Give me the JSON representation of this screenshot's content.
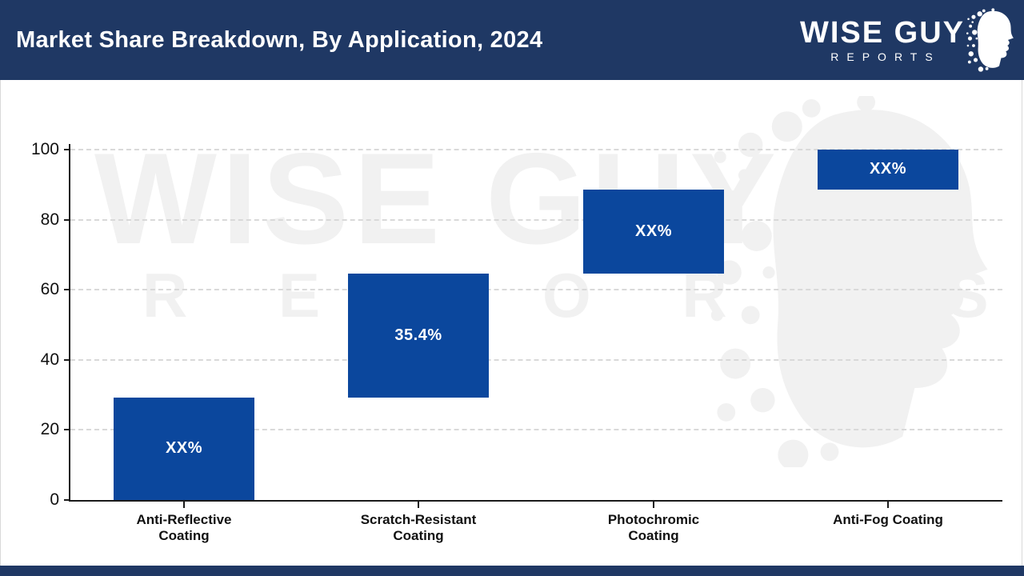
{
  "header": {
    "title": "Market Share Breakdown, By Application, 2024"
  },
  "logo": {
    "line1": "WISE GUY",
    "line2": "REPORTS"
  },
  "watermark": {
    "line1": "WISE GUY",
    "line2": "R E P O R T S"
  },
  "chart_data": {
    "type": "bar",
    "subtype": "floating-waterfall",
    "title": "Market Share Breakdown, By Application, 2024",
    "categories": [
      "Anti-Reflective Coating",
      "Scratch-Resistant Coating",
      "Photochromic Coating",
      "Anti-Fog Coating"
    ],
    "category_label_lines": [
      [
        "Anti-Reflective",
        "Coating"
      ],
      [
        "Scratch-Resistant",
        "Coating"
      ],
      [
        "Photochromic",
        "Coating"
      ],
      [
        "Anti-Fog Coating"
      ]
    ],
    "segments": [
      {
        "category": "Anti-Reflective Coating",
        "from": 0,
        "to": 29.3,
        "label": "XX%"
      },
      {
        "category": "Scratch-Resistant Coating",
        "from": 29.3,
        "to": 64.7,
        "label": "35.4%"
      },
      {
        "category": "Photochromic Coating",
        "from": 64.7,
        "to": 88.6,
        "label": "XX%"
      },
      {
        "category": "Anti-Fog Coating",
        "from": 88.6,
        "to": 100,
        "label": "XX%"
      }
    ],
    "ylim": [
      0,
      100
    ],
    "yticks": [
      0,
      20,
      40,
      60,
      80,
      100
    ],
    "grid": "dashed-horizontal",
    "legend": "none",
    "xlabel": "",
    "ylabel": "",
    "bar_color": "#0b479d",
    "bar_label_color": "#ffffff"
  },
  "colors": {
    "header_bg": "#1f3864",
    "footer_bg": "#1f3864",
    "bar": "#0b479d",
    "grid": "#d9d9d9",
    "axis": "#1a1a1a",
    "watermark": "#f1f1f1"
  }
}
